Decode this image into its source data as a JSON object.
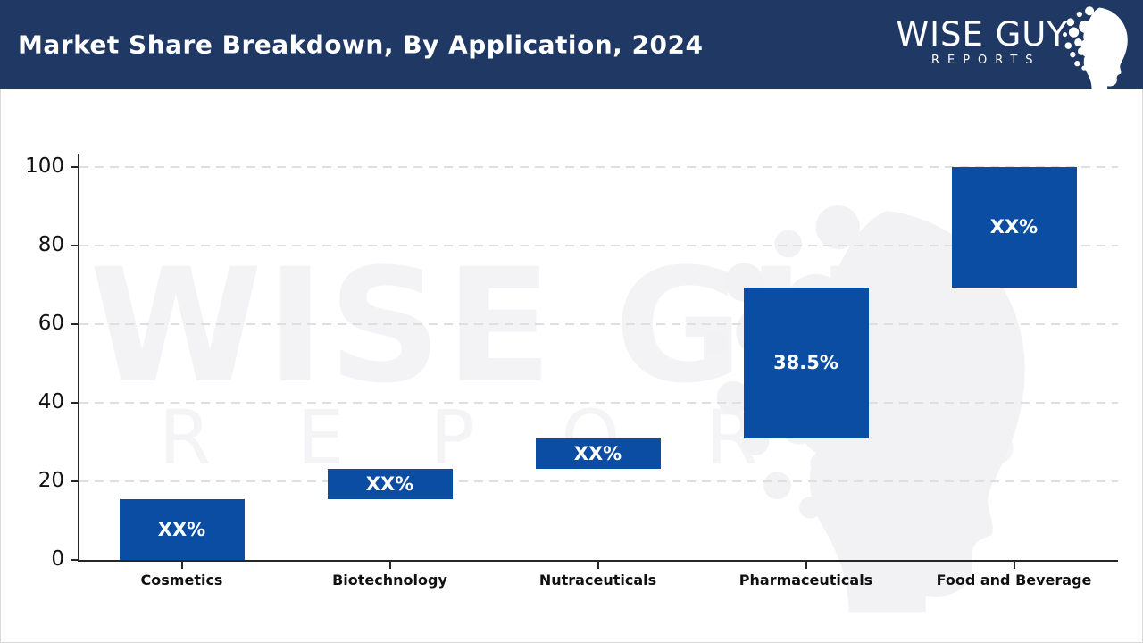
{
  "header": {
    "title": "Market Share Breakdown, By Application, 2024",
    "bg_color": "#203864",
    "logo": {
      "line1": "WISE GUY",
      "line2": "REPORTS"
    }
  },
  "watermark": {
    "line1": "WISE GUY",
    "line2": "REPORTS"
  },
  "chart_data": {
    "type": "bar",
    "subtype": "floating-waterfall-columns",
    "title": "Market Share Breakdown, By Application, 2024",
    "categories": [
      "Cosmetics",
      "Biotechnology",
      "Nutraceuticals",
      "Pharmaceuticals",
      "Food and Beverage"
    ],
    "segments": [
      {
        "category": "Cosmetics",
        "start": 0,
        "end": 15.5,
        "label": "XX%"
      },
      {
        "category": "Biotechnology",
        "start": 15.5,
        "end": 23.2,
        "label": "XX%"
      },
      {
        "category": "Nutraceuticals",
        "start": 23.2,
        "end": 30.9,
        "label": "XX%"
      },
      {
        "category": "Pharmaceuticals",
        "start": 30.9,
        "end": 69.4,
        "label": "38.5%"
      },
      {
        "category": "Food and Beverage",
        "start": 69.4,
        "end": 100,
        "label": "XX%"
      }
    ],
    "yticks": [
      0,
      20,
      40,
      60,
      80,
      100
    ],
    "ylim": [
      0,
      103.5
    ],
    "xlabel": "",
    "ylabel": "",
    "grid": "horizontal-dashed",
    "legend": "none",
    "bar_color": "#0b4da2",
    "bar_label_color": "#ffffff",
    "axis_color": "#262626",
    "gridline_color": "#dfdfdf"
  }
}
